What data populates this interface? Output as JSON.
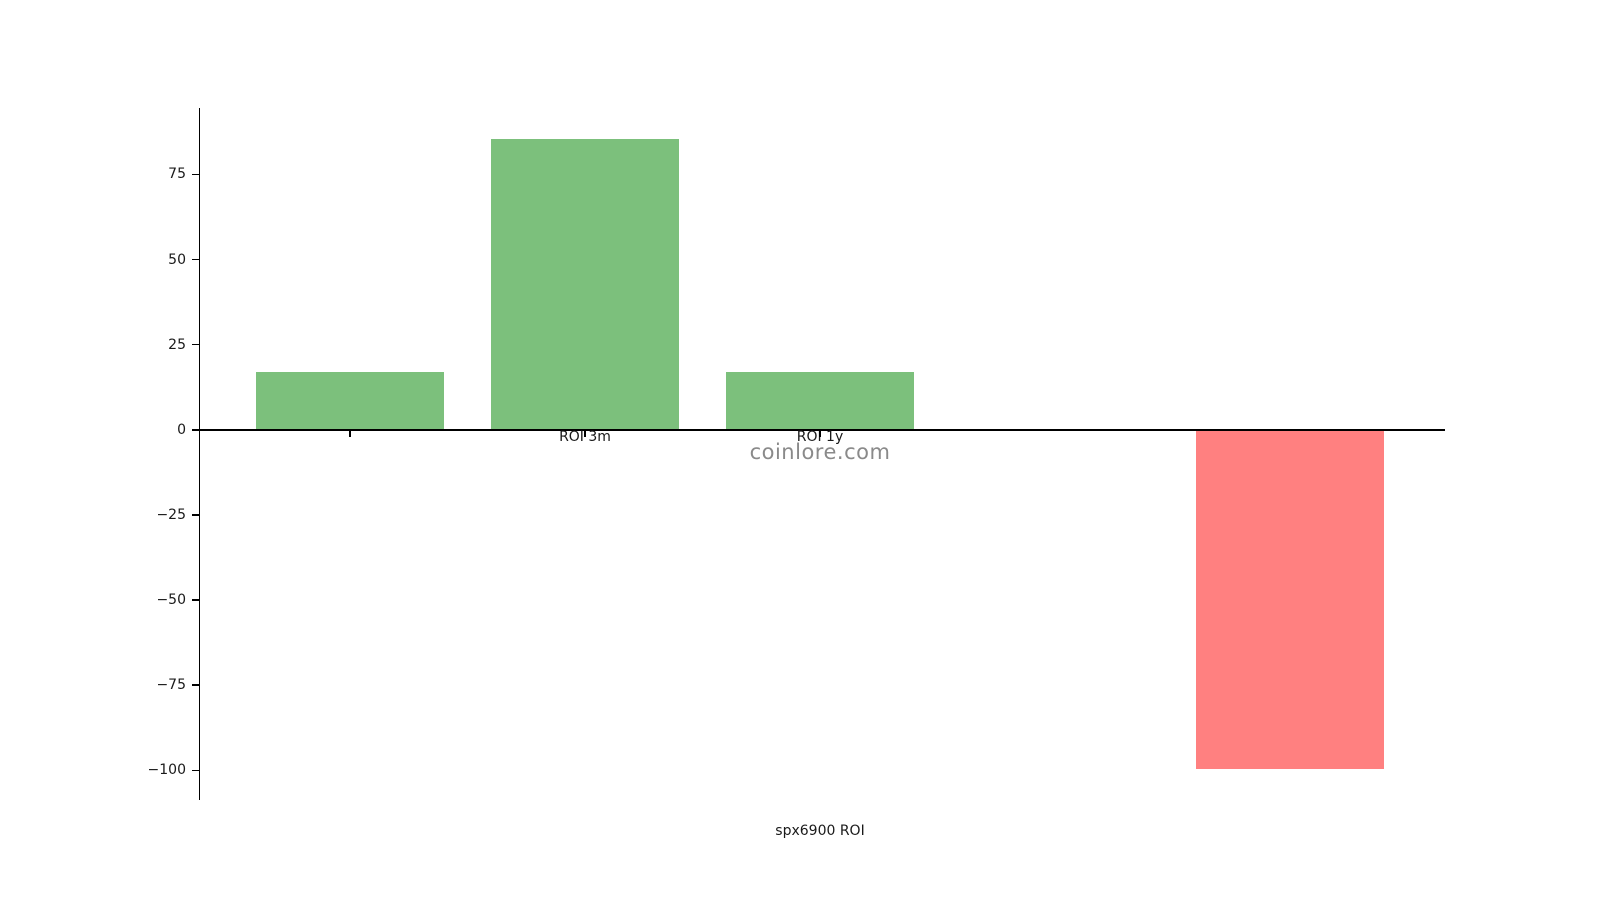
{
  "watermark": {
    "text": "coinlore.com",
    "color": "#8a8a8a"
  },
  "chart_data": {
    "type": "bar",
    "title": "spx6900 ROI",
    "categories": [
      "",
      "ROI 3m",
      "ROI 1y",
      "",
      ""
    ],
    "values": [
      17,
      85.3,
      17,
      null,
      -99.5
    ],
    "bar_colors": [
      "#7cc07c",
      "#7cc07c",
      "#7cc07c",
      null,
      "#ff8080"
    ],
    "x_tick_visible": [
      true,
      true,
      true,
      false,
      false
    ],
    "yticks": [
      75,
      50,
      25,
      0,
      -25,
      -50,
      -75,
      -100
    ],
    "ytick_labels": [
      "75",
      "50",
      "25",
      "0",
      "−25",
      "−50",
      "−75",
      "−100"
    ],
    "ylim": [
      -108.7,
      94.5
    ],
    "xlabel": "",
    "ylabel": "",
    "grid": false,
    "legend": null,
    "positive_color": "#7cc07c",
    "negative_color": "#ff8080",
    "axis_color": "#000000",
    "annotation": "coinlore.com"
  }
}
